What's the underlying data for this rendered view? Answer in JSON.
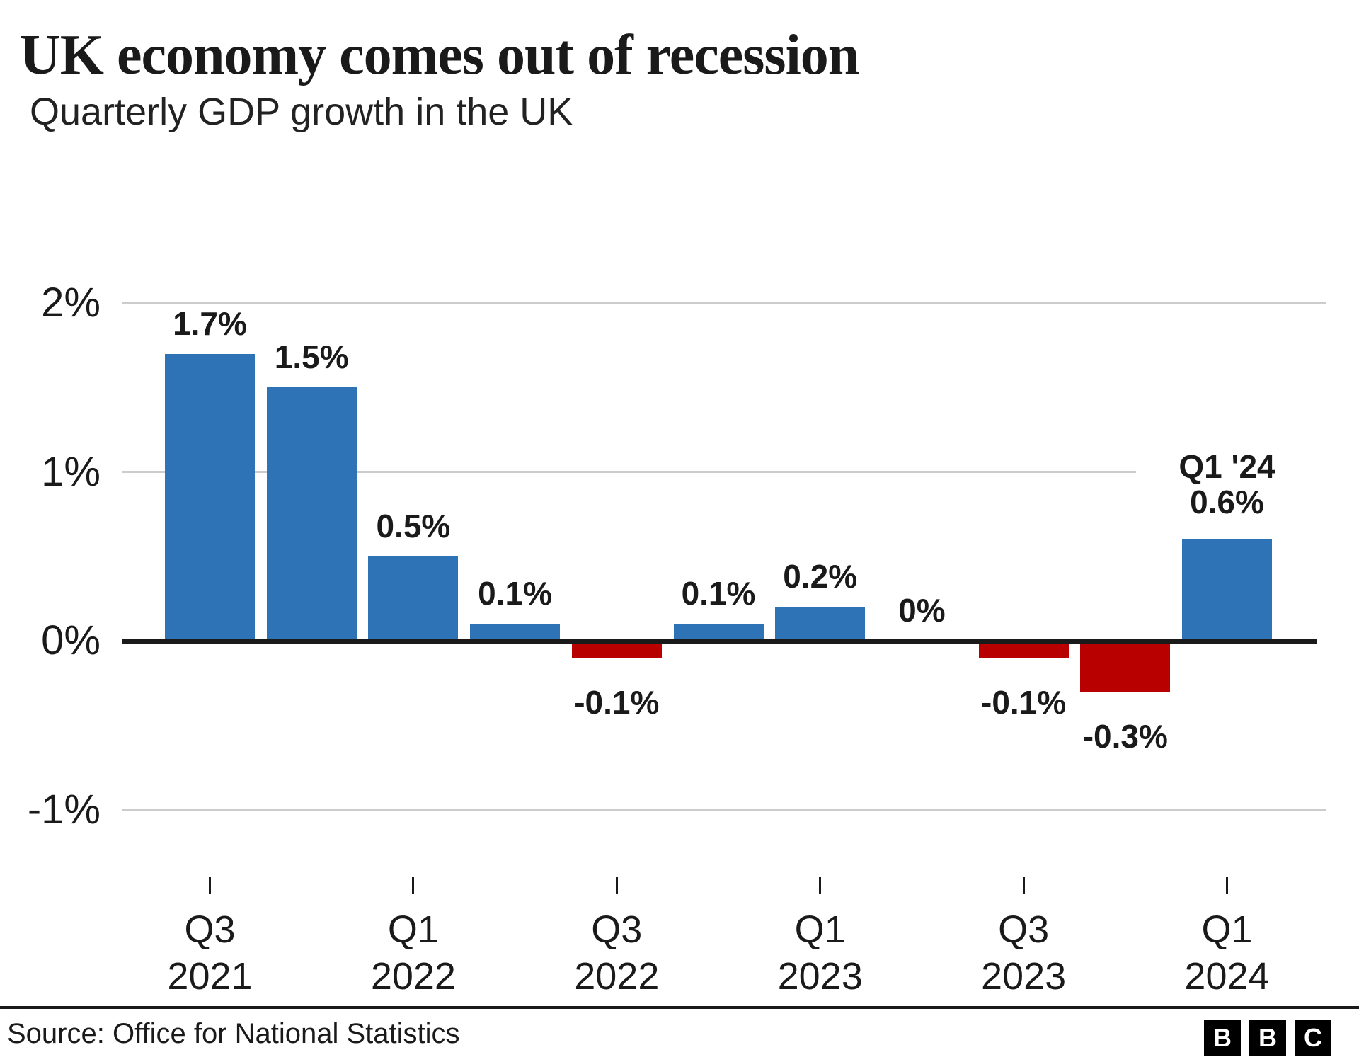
{
  "header": {
    "title": "UK economy comes out of recession",
    "subtitle": "Quarterly GDP growth in the UK"
  },
  "footer": {
    "source": "Source: Office for National Statistics",
    "logo_letters": [
      "B",
      "B",
      "C"
    ]
  },
  "chart_data": {
    "type": "bar",
    "title": "UK economy comes out of recession",
    "subtitle": "Quarterly GDP growth in the UK",
    "unit": "%",
    "values": [
      1.7,
      1.5,
      0.5,
      0.1,
      -0.1,
      0.1,
      0.2,
      0,
      -0.1,
      -0.3,
      0.6
    ],
    "bar_labels": [
      "1.7%",
      "1.5%",
      "0.5%",
      "0.1%",
      "-0.1%",
      "0.1%",
      "0.2%",
      "0%",
      "-0.1%",
      "-0.3%",
      "0.6%"
    ],
    "last_bar_annotation": "Q1 '24",
    "x_ticks": [
      {
        "bar_index": 0,
        "lines": [
          "Q3",
          "2021"
        ]
      },
      {
        "bar_index": 2,
        "lines": [
          "Q1",
          "2022"
        ]
      },
      {
        "bar_index": 4,
        "lines": [
          "Q3",
          "2022"
        ]
      },
      {
        "bar_index": 6,
        "lines": [
          "Q1",
          "2023"
        ]
      },
      {
        "bar_index": 8,
        "lines": [
          "Q3",
          "2023"
        ]
      },
      {
        "bar_index": 10,
        "lines": [
          "Q1",
          "2024"
        ]
      }
    ],
    "y_ticks": [
      {
        "value": 2,
        "label": "2%"
      },
      {
        "value": 1,
        "label": "1%"
      },
      {
        "value": 0,
        "label": "0%"
      },
      {
        "value": -1,
        "label": "-1%"
      }
    ],
    "ylim": [
      -1.35,
      2.2
    ],
    "grid": true,
    "legend": false,
    "colors": {
      "positive": "#2e73b5",
      "negative": "#b80000",
      "axis_line": "#1a1a1a",
      "gridline": "#cccccc",
      "text": "#1a1a1a",
      "logo_bg": "#000000",
      "logo_text": "#ffffff"
    }
  }
}
